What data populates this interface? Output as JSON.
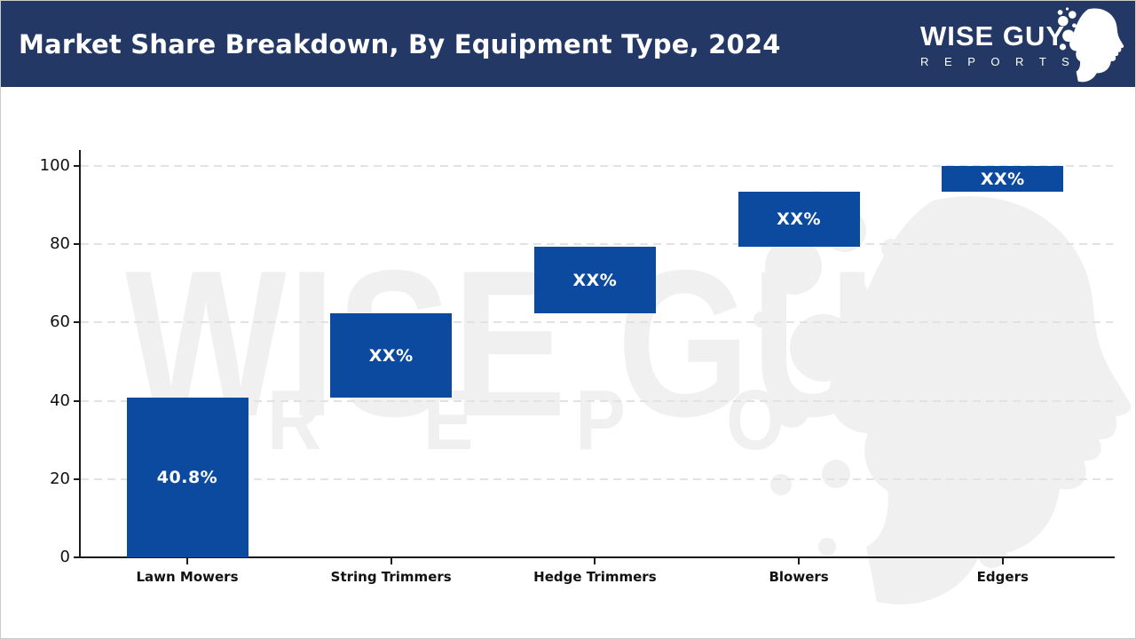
{
  "page": {
    "background": "#ffffff",
    "border_color": "#cbcbcb"
  },
  "header": {
    "title": "Market Share Breakdown, By Equipment Type, 2024",
    "bg_color": "#233864",
    "text_color": "#ffffff",
    "logo": {
      "line1": "WISE GUY",
      "line2": "R E P O R T S"
    }
  },
  "watermark": {
    "line1": "WISE GUY",
    "line2": "R E P O R T S",
    "color": "#f0f0f0"
  },
  "chart_data": {
    "type": "bar",
    "subtype": "waterfall",
    "title": "Market Share Breakdown, By Equipment Type, 2024",
    "xlabel": "",
    "ylabel": "",
    "categories": [
      "Lawn Mowers",
      "String Trimmers",
      "Hedge Trimmers",
      "Blowers",
      "Edgers"
    ],
    "segments": [
      {
        "category": "Lawn Mowers",
        "start": 0,
        "end": 40.8,
        "value": 40.8,
        "label": "40.8%"
      },
      {
        "category": "String Trimmers",
        "start": 40.8,
        "end": 62.3,
        "value": 21.5,
        "label": "XX%"
      },
      {
        "category": "Hedge Trimmers",
        "start": 62.3,
        "end": 79.4,
        "value": 17.1,
        "label": "XX%"
      },
      {
        "category": "Blowers",
        "start": 79.4,
        "end": 93.4,
        "value": 14.0,
        "label": "XX%"
      },
      {
        "category": "Edgers",
        "start": 93.4,
        "end": 100,
        "value": 6.6,
        "label": "XX%"
      }
    ],
    "yticks": [
      0,
      20,
      40,
      60,
      80,
      100
    ],
    "ylim": [
      0,
      104
    ],
    "grid": "horizontal-dashed",
    "legend": "none",
    "bar_color": "#0b4a9e",
    "bar_label_color": "#ffffff",
    "axis_color": "#1a1a1a",
    "gridline_color": "#e2e2e2"
  }
}
